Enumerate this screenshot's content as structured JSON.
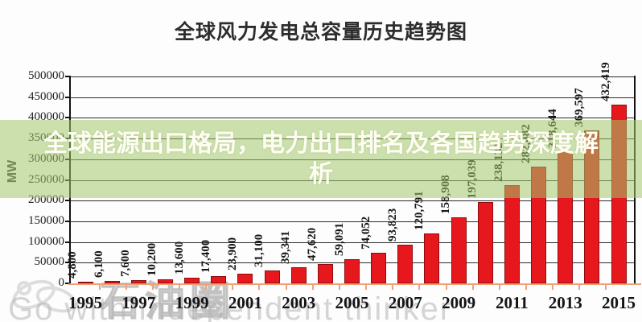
{
  "overlay": {
    "text": "全球能源出口格局，电力出口排名及各国趋势深度解析"
  },
  "watermark": {
    "brand": "石油圈",
    "tagline": "Go with independent thinker"
  },
  "colors": {
    "bar": "#e7181d",
    "bar_border": "#8f0b0e",
    "baseline": "#f0a077",
    "overlay_band": "#a3c96a",
    "overlay_text": "#fffdf3",
    "grid": "#2b2b2b"
  },
  "chart_data": {
    "type": "bar",
    "title": "全球风力发电总容量历史趋势图",
    "xlabel": "",
    "ylabel": "MW",
    "ylim": [
      0,
      500000
    ],
    "ytick_step": 50000,
    "grid": true,
    "legend": "none",
    "x": [
      1995,
      1996,
      1997,
      1998,
      1999,
      2000,
      2001,
      2002,
      2003,
      2004,
      2005,
      2006,
      2007,
      2008,
      2009,
      2010,
      2011,
      2012,
      2013,
      2014,
      2015
    ],
    "values": [
      4800,
      6100,
      7600,
      10200,
      13600,
      17400,
      23900,
      31100,
      39341,
      47620,
      59091,
      74052,
      93823,
      120791,
      158908,
      197039,
      238132,
      282482,
      318644,
      369597,
      432419
    ],
    "bar_labels": [
      "4,800",
      "6,100",
      "7,600",
      "10,200",
      "13,600",
      "17,400",
      "23,900",
      "31,100",
      "39,341",
      "47,620",
      "59,091",
      "74,052",
      "93,823",
      "120,791",
      "158,908",
      "197,039",
      "238,132",
      "282,482",
      "318,644",
      "369,597",
      "432,419"
    ],
    "ytick_labels": [
      "500000",
      "450000",
      "400000",
      "350000",
      "300000",
      "250000",
      "200000",
      "150000",
      "100000",
      "50000",
      "0"
    ],
    "xtick_labels": [
      "1995",
      "1997",
      "1999",
      "2001",
      "2003",
      "2005",
      "2007",
      "2009",
      "2011",
      "2013",
      "2015"
    ]
  }
}
